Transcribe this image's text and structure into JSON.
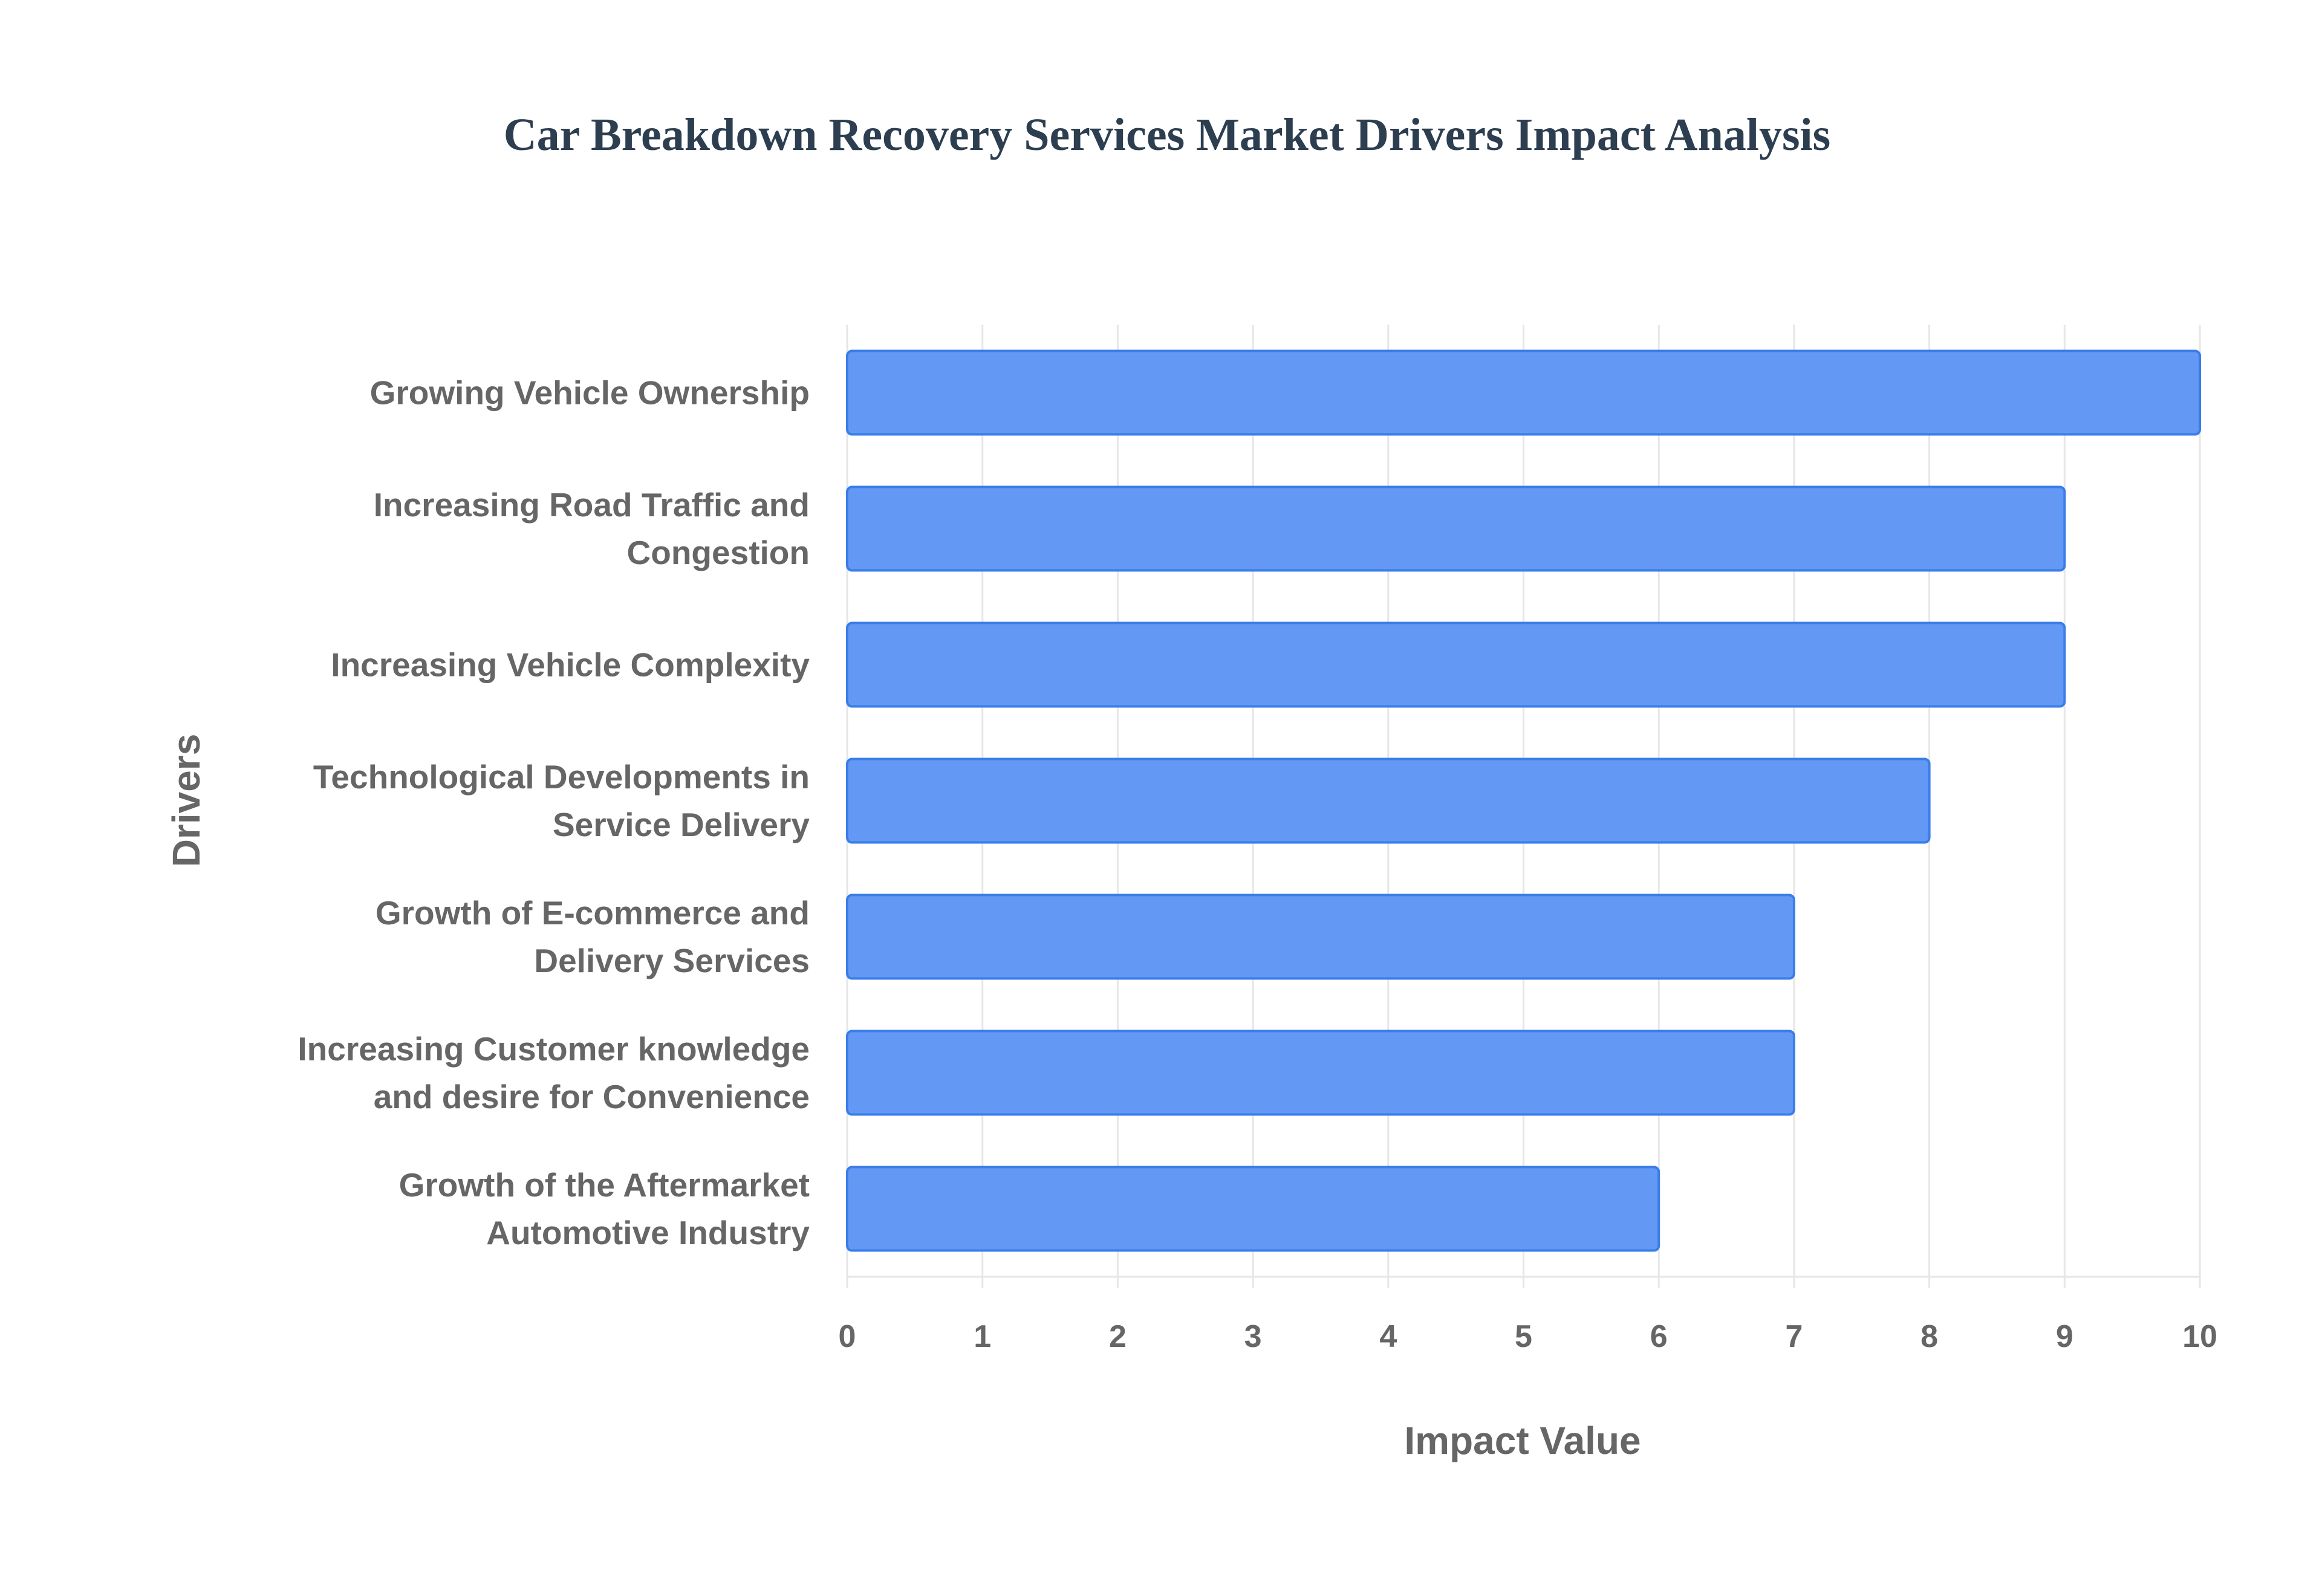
{
  "chart_data": {
    "type": "bar",
    "orientation": "horizontal",
    "title": "Car Breakdown Recovery Services Market Drivers Impact Analysis",
    "xlabel": "Impact Value",
    "ylabel": "Drivers",
    "xlim": [
      0,
      10
    ],
    "xticks": [
      "0",
      "1",
      "2",
      "3",
      "4",
      "5",
      "6",
      "7",
      "8",
      "9",
      "10"
    ],
    "grid": true,
    "categories": [
      [
        "Growing Vehicle Ownership"
      ],
      [
        "Increasing Road Traffic and",
        "Congestion"
      ],
      [
        "Increasing Vehicle Complexity"
      ],
      [
        "Technological Developments in",
        "Service Delivery"
      ],
      [
        "Growth of E-commerce and",
        "Delivery Services"
      ],
      [
        "Increasing Customer knowledge",
        "and desire for Convenience"
      ],
      [
        "Growth of the Aftermarket",
        "Automotive Industry"
      ]
    ],
    "values": [
      10,
      9,
      9,
      8,
      7,
      7,
      6
    ],
    "colors": {
      "bar_fill": "#6399f5",
      "bar_border": "#3b7de8",
      "grid": "#e6e6e6",
      "title": "#2c3e50",
      "text": "#666666"
    }
  }
}
